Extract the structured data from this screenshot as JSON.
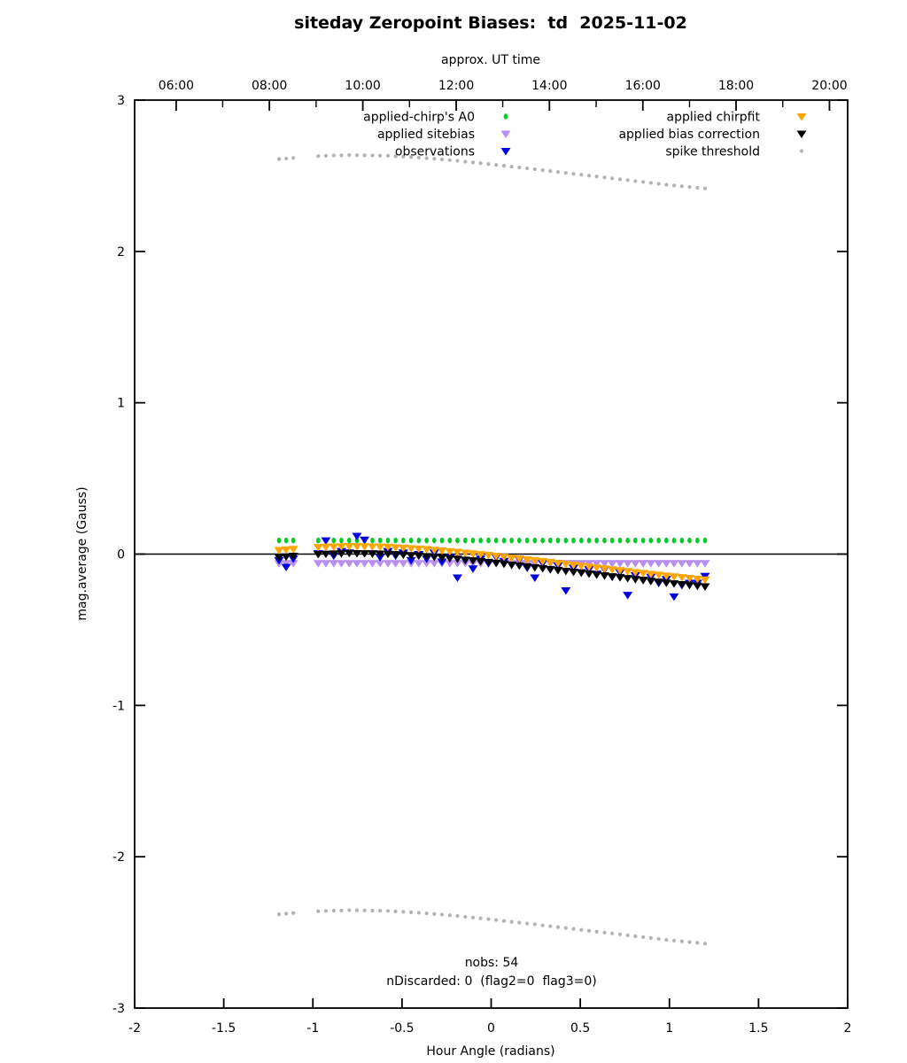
{
  "header": {
    "title": "siteday Zeropoint Biases:  td  2025-11-02"
  },
  "footer": {
    "nobs": "nobs: 54",
    "ndiscarded": "nDiscarded: 0  (flag2=0  flag3=0)"
  },
  "chart_data": {
    "type": "scatter",
    "title": "siteday Zeropoint Biases:  td  2025-11-02",
    "xlabel": "Hour Angle (radians)",
    "x2label": "approx. UT time",
    "ylabel": "mag.average (Gauss)",
    "xlim": [
      -2,
      2
    ],
    "ylim": [
      -3,
      3
    ],
    "grid": false,
    "zero_line": true,
    "x_ticks": [
      {
        "v": -2,
        "label": "-2"
      },
      {
        "v": -1.5,
        "label": "-1.5"
      },
      {
        "v": -1,
        "label": "-1"
      },
      {
        "v": -0.5,
        "label": "-0.5"
      },
      {
        "v": 0,
        "label": "0"
      },
      {
        "v": 0.5,
        "label": "0.5"
      },
      {
        "v": 1,
        "label": "1"
      },
      {
        "v": 1.5,
        "label": "1.5"
      },
      {
        "v": 2,
        "label": "2"
      }
    ],
    "y_ticks": [
      {
        "v": 3,
        "label": "3"
      },
      {
        "v": 2,
        "label": "2"
      },
      {
        "v": 1,
        "label": "1"
      },
      {
        "v": 0,
        "label": "0"
      },
      {
        "v": -1,
        "label": "-1"
      },
      {
        "v": -2,
        "label": "-2"
      },
      {
        "v": -3,
        "label": "-3"
      }
    ],
    "x2_major_ticks": [
      {
        "v": -1.767,
        "label": "06:00"
      },
      {
        "v": -1.244,
        "label": "08:00"
      },
      {
        "v": -0.72,
        "label": "10:00"
      },
      {
        "v": -0.196,
        "label": "12:00"
      },
      {
        "v": 0.327,
        "label": "14:00"
      },
      {
        "v": 0.851,
        "label": "16:00"
      },
      {
        "v": 1.374,
        "label": "18:00"
      },
      {
        "v": 1.898,
        "label": "20:00"
      }
    ],
    "x2_minor_ticks": [
      -1.506,
      -0.982,
      -0.458,
      0.065,
      0.589,
      1.113,
      1.636
    ],
    "x": [
      -1.19,
      -1.15,
      -1.11,
      -0.97,
      -0.927,
      -0.883,
      -0.84,
      -0.796,
      -0.753,
      -0.71,
      -0.666,
      -0.623,
      -0.579,
      -0.536,
      -0.493,
      -0.449,
      -0.406,
      -0.362,
      -0.319,
      -0.276,
      -0.232,
      -0.189,
      -0.145,
      -0.102,
      -0.059,
      -0.015,
      0.028,
      0.072,
      0.115,
      0.158,
      0.202,
      0.245,
      0.289,
      0.332,
      0.375,
      0.419,
      0.462,
      0.506,
      0.549,
      0.592,
      0.636,
      0.679,
      0.723,
      0.766,
      0.809,
      0.853,
      0.896,
      0.94,
      0.983,
      1.026,
      1.07,
      1.113,
      1.157,
      1.2
    ],
    "series": [
      {
        "id": "spike_upper",
        "label": "spike threshold",
        "marker": "dot",
        "color": "#b3b3b3",
        "values": [
          2.61,
          2.614,
          2.618,
          2.63,
          2.632,
          2.634,
          2.635,
          2.637,
          2.636,
          2.635,
          2.634,
          2.633,
          2.632,
          2.629,
          2.626,
          2.623,
          2.62,
          2.616,
          2.612,
          2.608,
          2.603,
          2.599,
          2.593,
          2.588,
          2.583,
          2.578,
          2.572,
          2.566,
          2.56,
          2.555,
          2.549,
          2.543,
          2.537,
          2.531,
          2.525,
          2.519,
          2.513,
          2.507,
          2.501,
          2.495,
          2.489,
          2.483,
          2.477,
          2.471,
          2.465,
          2.459,
          2.453,
          2.447,
          2.441,
          2.436,
          2.431,
          2.426,
          2.421,
          2.416
        ]
      },
      {
        "id": "spike_lower",
        "label": "spike threshold",
        "marker": "dot",
        "color": "#b3b3b3",
        "values": [
          -2.38,
          -2.376,
          -2.372,
          -2.36,
          -2.358,
          -2.356,
          -2.355,
          -2.353,
          -2.354,
          -2.355,
          -2.356,
          -2.357,
          -2.358,
          -2.361,
          -2.364,
          -2.367,
          -2.37,
          -2.374,
          -2.378,
          -2.382,
          -2.387,
          -2.391,
          -2.397,
          -2.402,
          -2.407,
          -2.412,
          -2.418,
          -2.424,
          -2.43,
          -2.435,
          -2.441,
          -2.447,
          -2.453,
          -2.459,
          -2.465,
          -2.471,
          -2.477,
          -2.483,
          -2.489,
          -2.495,
          -2.501,
          -2.507,
          -2.513,
          -2.519,
          -2.525,
          -2.531,
          -2.537,
          -2.543,
          -2.549,
          -2.554,
          -2.559,
          -2.564,
          -2.569,
          -2.574
        ]
      },
      {
        "id": "a0",
        "label": "applied-chirp's A0",
        "marker": "ellipse-dot",
        "color": "#00cc22",
        "values": [
          0.09,
          0.09,
          0.09,
          0.09,
          0.09,
          0.09,
          0.09,
          0.09,
          0.09,
          0.09,
          0.09,
          0.09,
          0.09,
          0.09,
          0.09,
          0.09,
          0.09,
          0.09,
          0.09,
          0.09,
          0.09,
          0.09,
          0.09,
          0.09,
          0.09,
          0.09,
          0.09,
          0.09,
          0.09,
          0.09,
          0.09,
          0.09,
          0.09,
          0.09,
          0.09,
          0.09,
          0.09,
          0.09,
          0.09,
          0.09,
          0.09,
          0.09,
          0.09,
          0.09,
          0.09,
          0.09,
          0.09,
          0.09,
          0.09,
          0.09,
          0.09,
          0.09,
          0.09,
          0.09
        ]
      },
      {
        "id": "sitebias",
        "label": "applied sitebias",
        "marker": "triangle-down",
        "color": "#b88fee",
        "values": [
          -0.06,
          -0.06,
          -0.06,
          -0.06,
          -0.06,
          -0.06,
          -0.06,
          -0.06,
          -0.06,
          -0.06,
          -0.06,
          -0.06,
          -0.06,
          -0.06,
          -0.06,
          -0.06,
          -0.06,
          -0.06,
          -0.06,
          -0.06,
          -0.06,
          -0.06,
          -0.06,
          -0.06,
          -0.06,
          -0.06,
          -0.06,
          -0.06,
          -0.06,
          -0.06,
          -0.06,
          -0.06,
          -0.06,
          -0.06,
          -0.06,
          -0.06,
          -0.06,
          -0.06,
          -0.06,
          -0.06,
          -0.06,
          -0.06,
          -0.06,
          -0.06,
          -0.06,
          -0.06,
          -0.06,
          -0.06,
          -0.06,
          -0.06,
          -0.06,
          -0.06,
          -0.06,
          -0.06
        ]
      },
      {
        "id": "observations",
        "label": "observations",
        "marker": "triangle-down",
        "color": "#0000dd",
        "values": [
          -0.04,
          -0.085,
          -0.03,
          0.005,
          0.09,
          -0.01,
          0.02,
          0.01,
          0.12,
          0.095,
          0.005,
          -0.02,
          0.02,
          -0.01,
          0.01,
          -0.04,
          0.0,
          -0.03,
          0.01,
          -0.05,
          -0.02,
          -0.155,
          -0.04,
          -0.095,
          -0.03,
          -0.06,
          -0.02,
          -0.045,
          -0.07,
          -0.035,
          -0.09,
          -0.155,
          -0.06,
          -0.1,
          -0.075,
          -0.24,
          -0.09,
          -0.12,
          -0.1,
          -0.13,
          -0.1,
          -0.15,
          -0.12,
          -0.27,
          -0.14,
          -0.17,
          -0.15,
          -0.19,
          -0.165,
          -0.28,
          -0.205,
          -0.19,
          -0.19,
          -0.145
        ]
      },
      {
        "id": "chirpfit",
        "label": "applied chirpfit",
        "marker": "triangle-down",
        "color": "#ffa500",
        "values": [
          0.026,
          0.03,
          0.034,
          0.046,
          0.048,
          0.05,
          0.051,
          0.053,
          0.052,
          0.051,
          0.05,
          0.049,
          0.048,
          0.045,
          0.042,
          0.039,
          0.036,
          0.032,
          0.028,
          0.024,
          0.019,
          0.015,
          0.009,
          0.004,
          -0.001,
          -0.006,
          -0.012,
          -0.018,
          -0.024,
          -0.029,
          -0.035,
          -0.041,
          -0.047,
          -0.053,
          -0.059,
          -0.065,
          -0.071,
          -0.077,
          -0.083,
          -0.089,
          -0.095,
          -0.101,
          -0.107,
          -0.113,
          -0.119,
          -0.125,
          -0.131,
          -0.137,
          -0.143,
          -0.148,
          -0.153,
          -0.158,
          -0.163,
          -0.168
        ]
      },
      {
        "id": "biascorr",
        "label": "applied bias correction",
        "marker": "triangle-down",
        "color": "#000000",
        "values": [
          -0.02,
          -0.016,
          -0.012,
          0.0,
          0.002,
          0.004,
          0.005,
          0.007,
          0.006,
          0.005,
          0.004,
          0.003,
          0.002,
          -0.001,
          -0.004,
          -0.007,
          -0.01,
          -0.014,
          -0.018,
          -0.022,
          -0.027,
          -0.031,
          -0.037,
          -0.042,
          -0.047,
          -0.052,
          -0.058,
          -0.064,
          -0.07,
          -0.075,
          -0.081,
          -0.087,
          -0.093,
          -0.099,
          -0.105,
          -0.111,
          -0.117,
          -0.123,
          -0.129,
          -0.135,
          -0.141,
          -0.147,
          -0.153,
          -0.159,
          -0.165,
          -0.171,
          -0.177,
          -0.183,
          -0.189,
          -0.194,
          -0.199,
          -0.204,
          -0.209,
          -0.214
        ]
      }
    ],
    "legend": {
      "position": "top-inside",
      "left_column": [
        "a0",
        "sitebias",
        "observations"
      ],
      "right_column": [
        "chirpfit",
        "biascorr",
        "spike_upper"
      ]
    }
  }
}
